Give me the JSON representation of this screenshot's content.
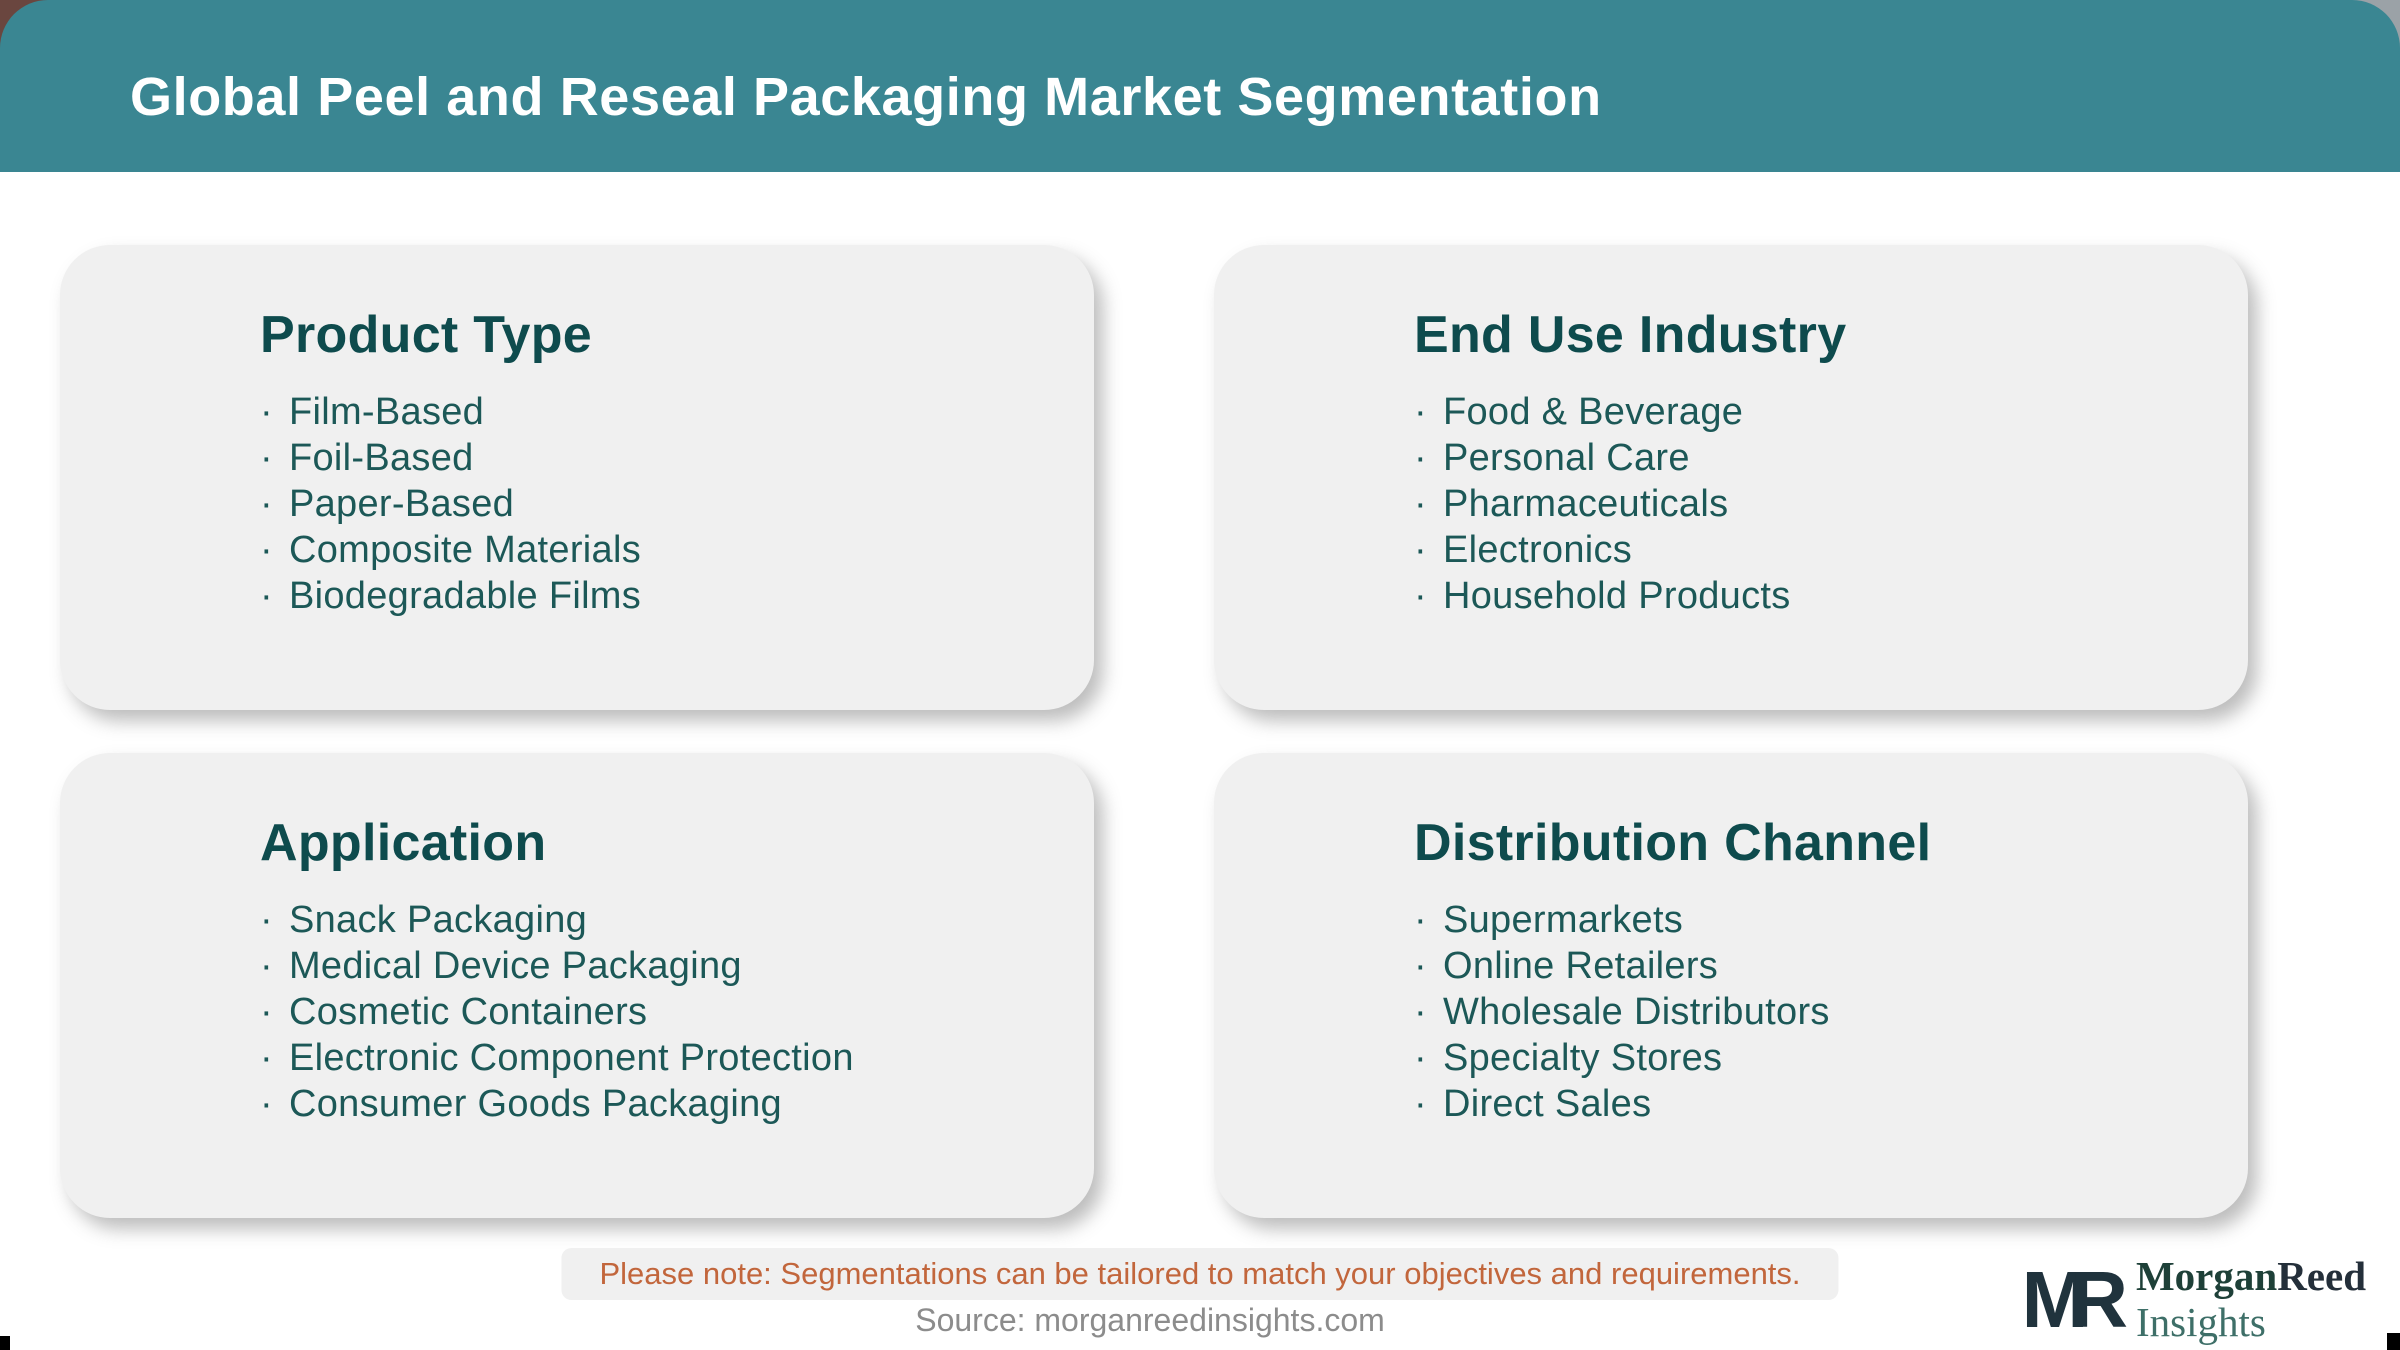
{
  "ui": {
    "bullet": "·"
  },
  "header": {
    "title": "Global Peel and Reseal Packaging Market Segmentation"
  },
  "cards": [
    {
      "title": "Product Type",
      "items": [
        "Film-Based",
        "Foil-Based",
        "Paper-Based",
        "Composite Materials",
        "Biodegradable Films"
      ]
    },
    {
      "title": "End Use Industry",
      "items": [
        "Food & Beverage",
        "Personal Care",
        "Pharmaceuticals",
        "Electronics",
        "Household Products"
      ]
    },
    {
      "title": "Application",
      "items": [
        "Snack Packaging",
        "Medical Device Packaging",
        "Cosmetic Containers",
        "Electronic Component Protection",
        "Consumer Goods Packaging"
      ]
    },
    {
      "title": "Distribution Channel",
      "items": [
        "Supermarkets",
        "Online Retailers",
        "Wholesale Distributors",
        "Specialty Stores",
        "Direct Sales"
      ]
    }
  ],
  "footer": {
    "note": "Please note: Segmentations can be tailored to match your objectives and requirements.",
    "source": "Source: morganreedinsights.com"
  },
  "logo": {
    "monogram_m": "M",
    "monogram_r": "R",
    "name_part1": "Morgan",
    "name_part2": "Reed",
    "subtitle": "Insights"
  },
  "colors": {
    "header_bar": "#3A8692",
    "card_background": "#F0F0F0",
    "card_heading": "#0E4B4D",
    "card_item": "#1C5857",
    "note_text": "#C2663C",
    "note_background": "#F0F0F0",
    "source_text": "#8C8C8C",
    "logo_dark": "#20333D",
    "logo_green": "#1E4038",
    "logo_navy": "#242F3A",
    "logo_teal": "#3E6F68"
  }
}
